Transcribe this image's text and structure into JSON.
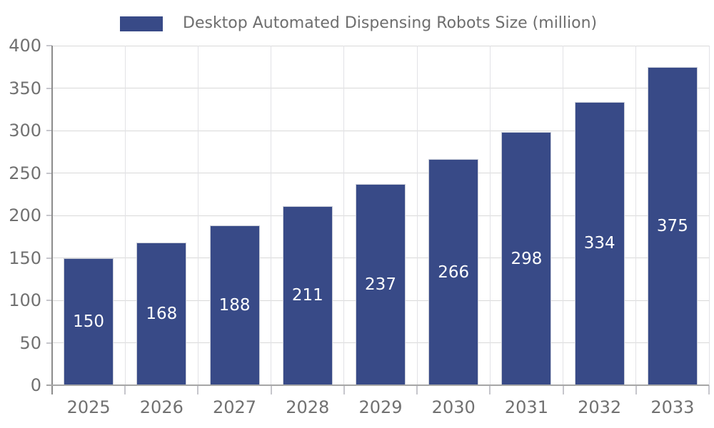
{
  "legend": {
    "label": "Desktop Automated Dispensing Robots Size (million)"
  },
  "chart_data": {
    "type": "bar",
    "title": "Desktop Automated Dispensing Robots Size (million)",
    "categories": [
      "2025",
      "2026",
      "2027",
      "2028",
      "2029",
      "2030",
      "2031",
      "2032",
      "2033"
    ],
    "values": [
      150,
      168,
      188,
      211,
      237,
      266,
      298,
      334,
      375
    ],
    "xlabel": "",
    "ylabel": "",
    "ylim": [
      0,
      400
    ],
    "ytick_step": 50,
    "ytick_labels": [
      "0",
      "50",
      "100",
      "150",
      "200",
      "250",
      "300",
      "350",
      "400"
    ],
    "grid": true,
    "legend_position": "top",
    "value_labels_inside_bars": true,
    "colors": {
      "bar_fill": "#384a87",
      "bar_edge": "#c9cdd8",
      "value_label": "#ffffff",
      "axis_text": "#717171",
      "legend_text": "#6e6e6e",
      "gridline_h": "#d9d9d9",
      "gridline_v": "#e2e2e6",
      "axis_line_left": "#8c8c8c",
      "axis_line_bottom": "#a6a6a6",
      "tick_mark": "#c6c6cc",
      "background": "#ffffff"
    }
  }
}
